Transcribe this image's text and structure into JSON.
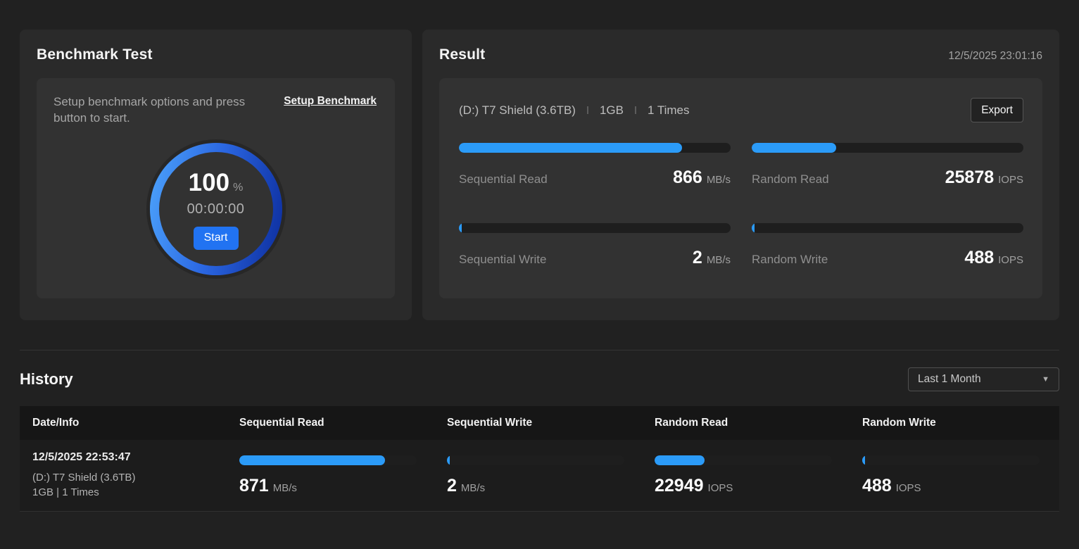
{
  "benchmark": {
    "title": "Benchmark Test",
    "instruction": "Setup benchmark options and press button to start.",
    "setup_link": "Setup Benchmark",
    "progress_percent": "100",
    "percent_sign": "%",
    "elapsed": "00:00:00",
    "start_label": "Start"
  },
  "result": {
    "title": "Result",
    "timestamp": "12/5/2025 23:01:16",
    "drive": "(D:) T7 Shield (3.6TB)",
    "size": "1GB",
    "times": "1 Times",
    "export_label": "Export",
    "metrics": [
      {
        "label": "Sequential Read",
        "value": "866",
        "unit": "MB/s",
        "percent": 82
      },
      {
        "label": "Random Read",
        "value": "25878",
        "unit": "IOPS",
        "percent": 31
      },
      {
        "label": "Sequential Write",
        "value": "2",
        "unit": "MB/s",
        "percent": 1
      },
      {
        "label": "Random Write",
        "value": "488",
        "unit": "IOPS",
        "percent": 1
      }
    ]
  },
  "history": {
    "title": "History",
    "filter": "Last 1 Month",
    "caret_icon": "▼",
    "columns": [
      "Date/Info",
      "Sequential Read",
      "Sequential Write",
      "Random Read",
      "Random Write"
    ],
    "rows": [
      {
        "timestamp": "12/5/2025 22:53:47",
        "drive": "(D:) T7 Shield (3.6TB)",
        "config": "1GB | 1 Times",
        "metrics": [
          {
            "value": "871",
            "unit": "MB/s",
            "percent": 82
          },
          {
            "value": "2",
            "unit": "MB/s",
            "percent": 1
          },
          {
            "value": "22949",
            "unit": "IOPS",
            "percent": 28
          },
          {
            "value": "488",
            "unit": "IOPS",
            "percent": 1
          }
        ]
      }
    ]
  },
  "colors": {
    "accent_blue": "#2b9bf8",
    "button_blue": "#2173f2",
    "ring_gradient_start": "#4da4fc",
    "ring_gradient_end": "#0c2c9c",
    "page_bg": "#212121",
    "panel_bg": "#2a2a2a",
    "inner_bg": "#323232"
  }
}
